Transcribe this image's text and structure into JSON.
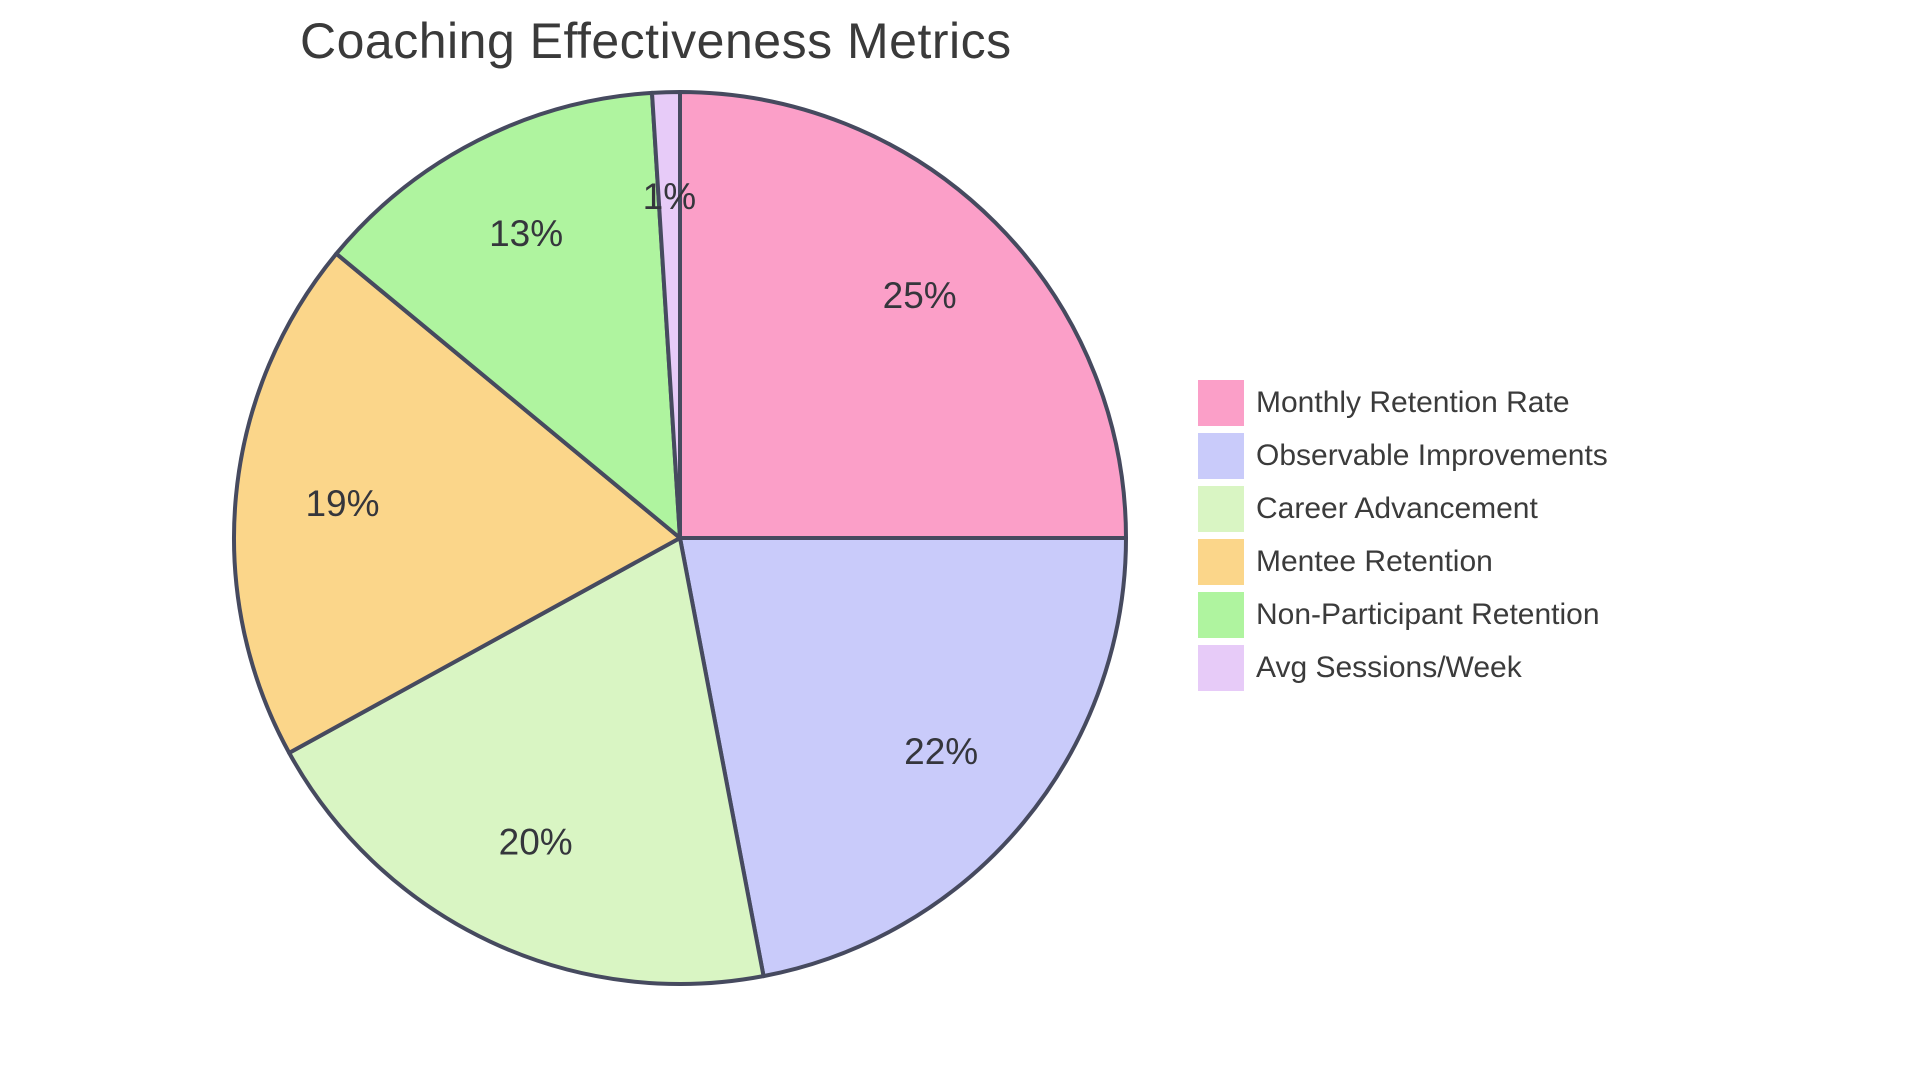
{
  "page": {
    "background": "#ffffff"
  },
  "chart_data": {
    "type": "pie",
    "title": "Coaching Effectiveness Metrics",
    "legend_position": "right",
    "start_angle_deg": 0,
    "direction": "clockwise",
    "slice_outline_color": "#464a5f",
    "title_color": "#3a3a3a",
    "percent_label_color": "#35363c",
    "legend_text_color": "#3b3b3b",
    "series": [
      {
        "label": "Monthly Retention Rate",
        "value": 25,
        "percent_label": "25%",
        "color": "#fb9fc8"
      },
      {
        "label": "Observable Improvements",
        "value": 22,
        "percent_label": "22%",
        "color": "#c9cbfa"
      },
      {
        "label": "Career Advancement",
        "value": 20,
        "percent_label": "20%",
        "color": "#d9f5c3"
      },
      {
        "label": "Mentee Retention",
        "value": 19,
        "percent_label": "19%",
        "color": "#fbd68a"
      },
      {
        "label": "Non-Participant Retention",
        "value": 13,
        "percent_label": "13%",
        "color": "#aff49f"
      },
      {
        "label": "Avg Sessions/Week",
        "value": 1,
        "percent_label": "1%",
        "color": "#e7cbf8"
      }
    ]
  }
}
